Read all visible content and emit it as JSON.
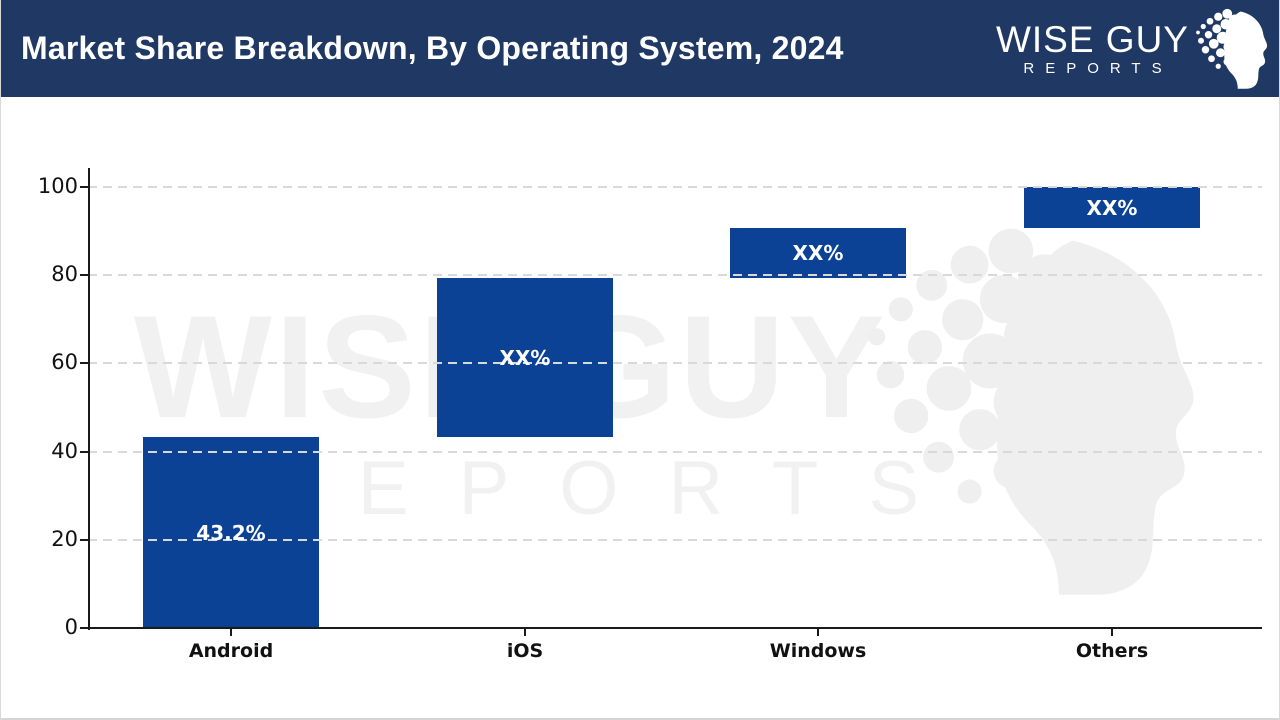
{
  "header": {
    "title": "Market Share Breakdown, By Operating System, 2024",
    "bg_color": "#1f3864",
    "text_color": "#ffffff",
    "logo": {
      "line1": "WISE GUY",
      "line2": "REPORTS",
      "head_icon": "dotted-head-profile-icon"
    }
  },
  "watermark": {
    "line1": "WISE GUY",
    "line2": "REPORTS",
    "color": "#f1f1f1"
  },
  "chart_data": {
    "type": "bar",
    "subtype": "waterfall",
    "title": "Market Share Breakdown, By Operating System, 2024",
    "categories": [
      "Android",
      "iOS",
      "Windows",
      "Others"
    ],
    "bars": [
      {
        "category": "Android",
        "start": 0,
        "end": 43.2,
        "label": "43.2%"
      },
      {
        "category": "iOS",
        "start": 43.2,
        "end": 79.4,
        "label": "XX%"
      },
      {
        "category": "Windows",
        "start": 79.4,
        "end": 90.6,
        "label": "XX%"
      },
      {
        "category": "Others",
        "start": 90.6,
        "end": 100,
        "label": "XX%"
      }
    ],
    "yticks": [
      0,
      20,
      40,
      60,
      80,
      100
    ],
    "ylim": [
      0,
      104
    ],
    "xlabel": "",
    "ylabel": "",
    "grid": "horizontal-dashed",
    "legend": "none",
    "bar_color": "#0b4296",
    "bar_label_color": "#ffffff",
    "gridline_color": "#d9d9d9",
    "axis_color": "#1a1a1a"
  }
}
